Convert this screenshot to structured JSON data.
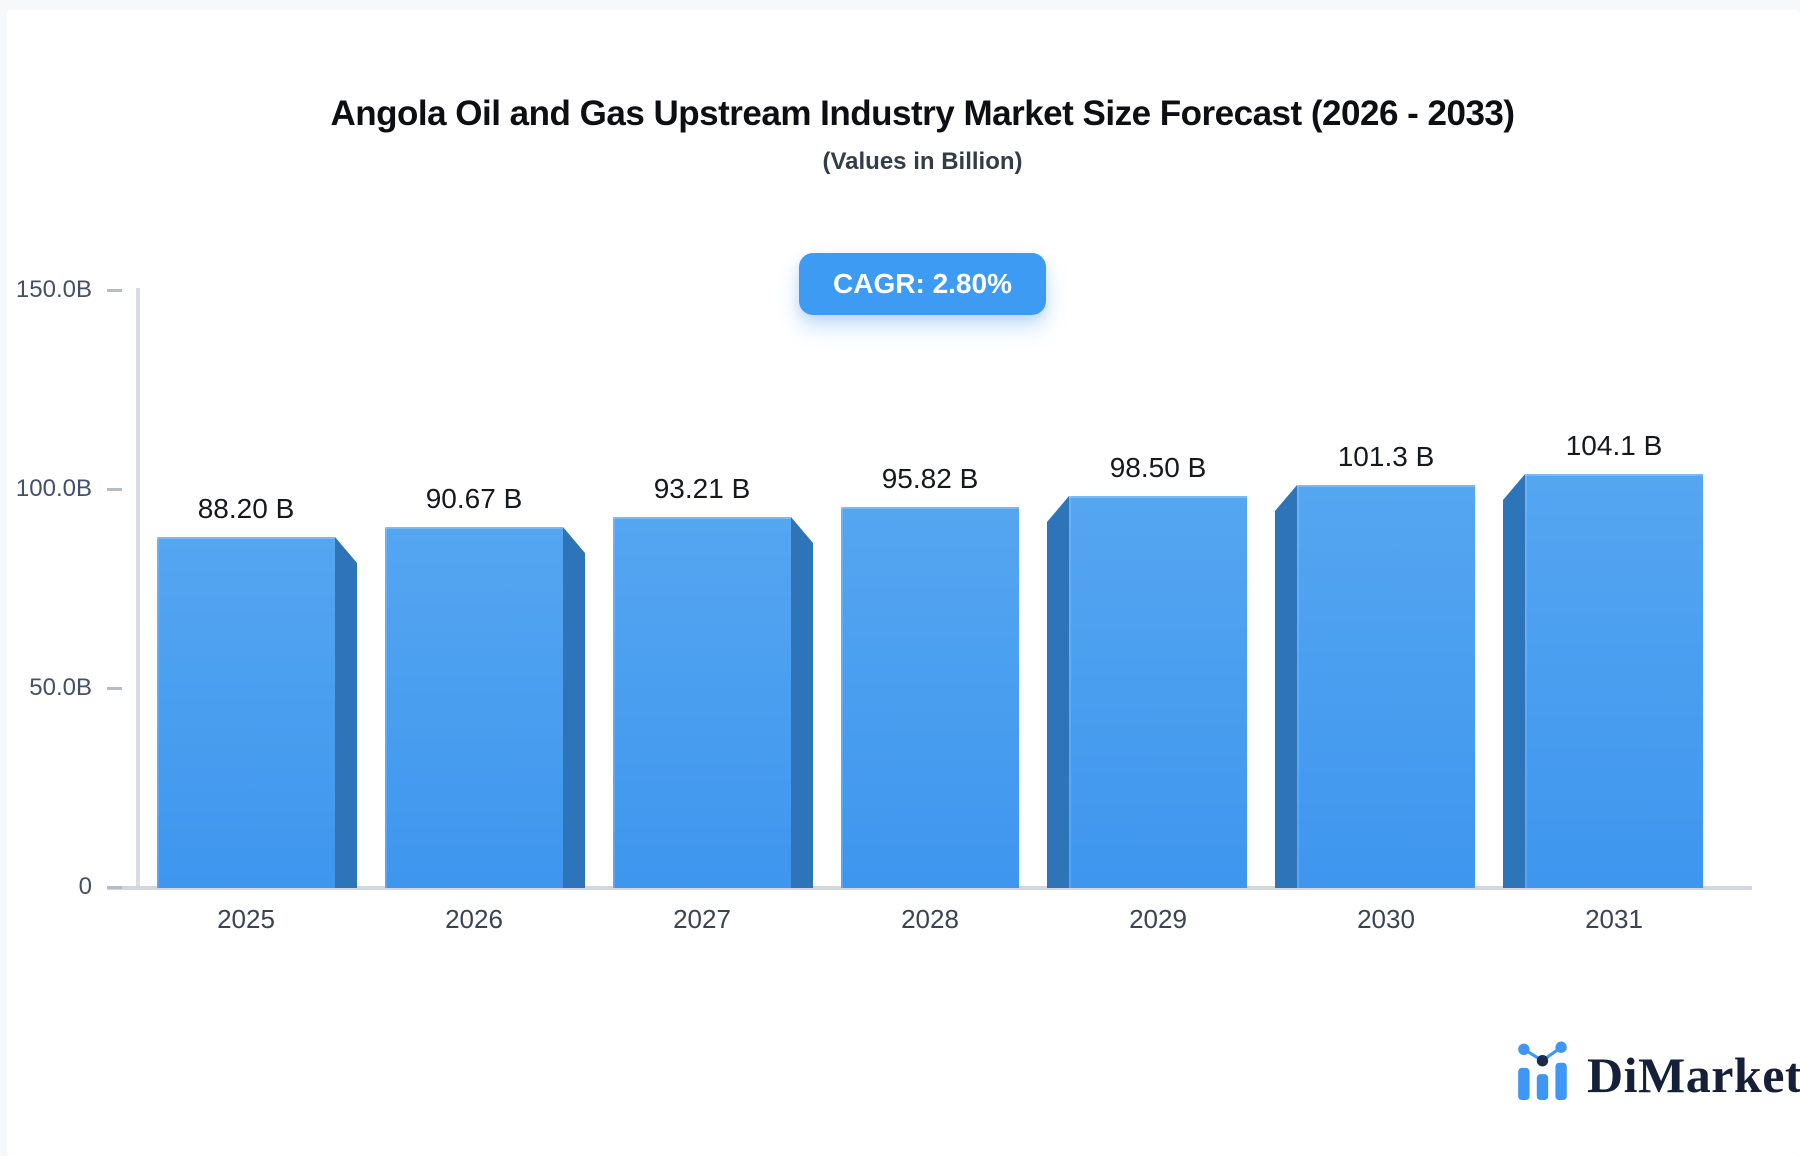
{
  "page": {
    "background": "#f7f8fa",
    "card_background": "#ffffff"
  },
  "header": {
    "title": "Angola Oil and Gas Upstream Industry Market Size Forecast (2026 - 2033)",
    "subtitle": "(Values in Billion)"
  },
  "cagr_badge": {
    "label": "CAGR: 2.80%",
    "background": "#3e9bf4",
    "text_color": "#ffffff"
  },
  "chart_data": {
    "type": "bar",
    "title": "Angola Oil and Gas Upstream Industry Market Size Forecast (2026 - 2033)",
    "subtitle": "(Values in Billion)",
    "categories": [
      "2025",
      "2026",
      "2027",
      "2028",
      "2029",
      "2030",
      "2031"
    ],
    "values": [
      88.2,
      90.67,
      93.21,
      95.82,
      98.5,
      101.3,
      104.1
    ],
    "value_labels": [
      "88.20 B",
      "90.67 B",
      "93.21 B",
      "95.82 B",
      "98.50 B",
      "101.3 B",
      "104.1 B"
    ],
    "ylim": [
      0,
      150
    ],
    "yticks": [
      {
        "label": "0",
        "value": 0
      },
      {
        "label": "50.0B",
        "value": 50
      },
      {
        "label": "100.0B",
        "value": 100
      },
      {
        "label": "150.0B",
        "value": 150
      }
    ],
    "grid": false,
    "legend": false,
    "style_3d": "side extrusion toward center bar",
    "bar_face_top_color": "#55a6f1",
    "bar_face_bottom_color": "#3e96ee",
    "bar_side_color": "#2e74b8",
    "axis_color": "#d8dce2",
    "tick_color": "#b4bcc6",
    "tick_label_color": "#44506a",
    "category_label_color": "#3a4254",
    "value_label_color": "#15181d"
  },
  "footer": {
    "brand_name": "DiMarket",
    "logo_icon": "bar-line-chart-icon",
    "brand_text_color": "#152038",
    "logo_bar_color": "#3e97f5",
    "logo_dot_dark_color": "#1c2b4a"
  }
}
